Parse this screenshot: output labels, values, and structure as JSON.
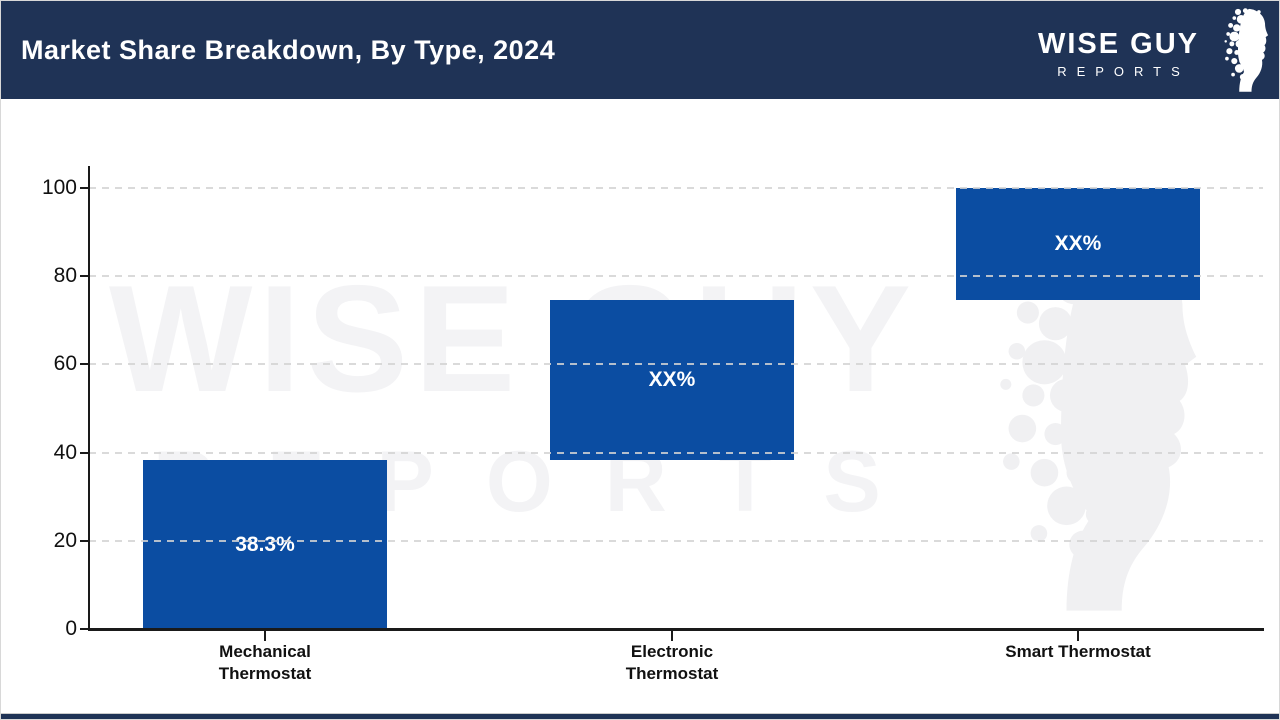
{
  "header": {
    "title": "Market Share Breakdown, By Type, 2024",
    "bg_color": "#1f3356",
    "logo": {
      "wordmark": "WISE GUY",
      "reports_label": "REPORTS"
    }
  },
  "watermark": {
    "wordmark": "WISE GUY",
    "reports_label": "REPORTS",
    "color": "#f3f3f5"
  },
  "chart_data": {
    "type": "bar",
    "subtype": "stacked-waterfall",
    "title": "Market Share Breakdown, By Type, 2024",
    "categories": [
      "Mechanical Thermostat",
      "Electronic Thermostat",
      "Smart Thermostat"
    ],
    "tick_labels": [
      "Mechanical\nThermostat",
      "Electronic\nThermostat",
      "Smart Thermostat"
    ],
    "series": [
      {
        "name": "Market Share (%)",
        "segments": [
          {
            "category": "Mechanical Thermostat",
            "start": 0,
            "end": 38.3,
            "label": "38.3%"
          },
          {
            "category": "Electronic Thermostat",
            "start": 38.3,
            "end": 74.5,
            "label": "XX%"
          },
          {
            "category": "Smart Thermostat",
            "start": 74.5,
            "end": 100,
            "label": "XX%"
          }
        ]
      }
    ],
    "ylim": [
      0,
      100
    ],
    "yticks": [
      0,
      20,
      40,
      60,
      80,
      100
    ],
    "xlabel": "",
    "ylabel": "",
    "grid": "horizontal-dashed",
    "legend": "none",
    "bar_color": "#0b4da2",
    "bar_label_color": "#ffffff",
    "grid_color": "#d3d3d3",
    "axis_color": "#1a1a1a"
  }
}
